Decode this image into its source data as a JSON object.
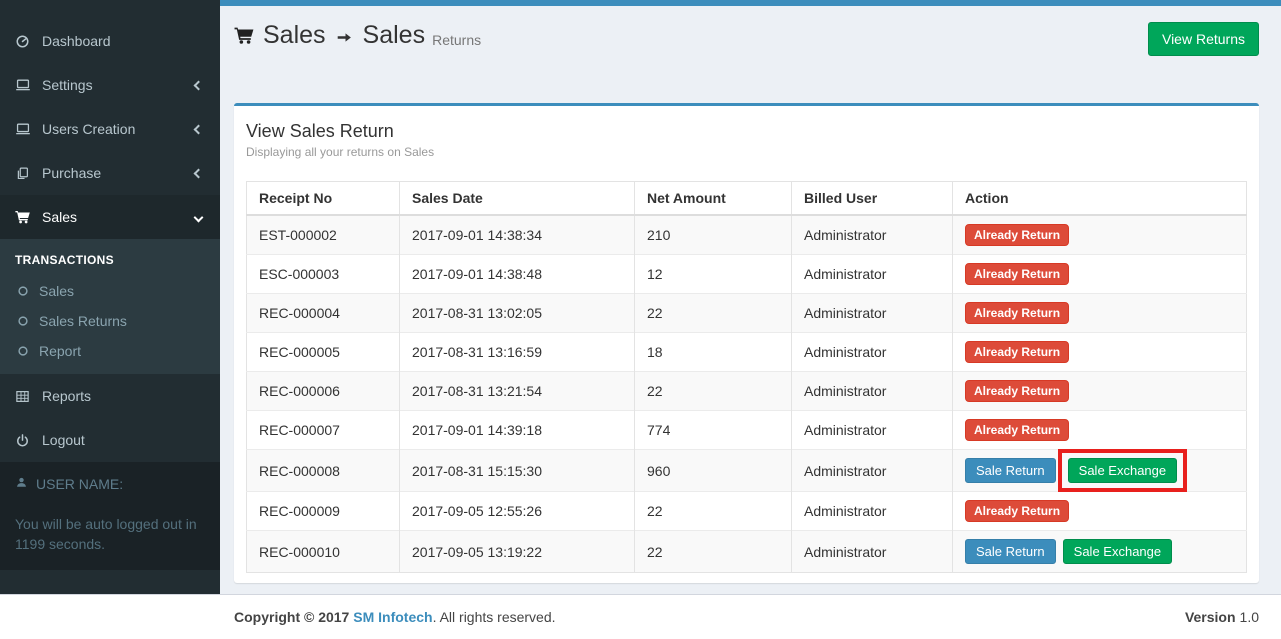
{
  "colors": {
    "accent": "#3c8dbc",
    "success_green": "#00a65a",
    "danger_red": "#dd4b39",
    "primary_blue": "#3c8dbc",
    "highlight_red": "#e8201d",
    "sidebar_bg": "#222d32",
    "sidebar_active_bg": "#1e282c",
    "submenu_bg": "#2c3b41",
    "content_bg": "#ecf0f5"
  },
  "sidebar": {
    "items": [
      {
        "label": "Dashboard",
        "icon": "dashboard-icon"
      },
      {
        "label": "Settings",
        "icon": "laptop-icon"
      },
      {
        "label": "Users Creation",
        "icon": "laptop-icon"
      },
      {
        "label": "Purchase",
        "icon": "copy-icon"
      },
      {
        "label": "Sales",
        "icon": "cart-icon"
      },
      {
        "label": "Reports",
        "icon": "table-icon"
      },
      {
        "label": "Logout",
        "icon": "power-icon"
      }
    ],
    "submenu": {
      "header": "TRANSACTIONS",
      "items": [
        "Sales",
        "Sales Returns",
        "Report"
      ]
    },
    "user": {
      "label": "USER NAME:",
      "auto_logout": "You will be auto logged out in 1199 seconds."
    }
  },
  "header": {
    "breadcrumb_primary": "Sales",
    "breadcrumb_secondary": "Sales",
    "breadcrumb_sub": "Returns",
    "view_returns_button": "View Returns"
  },
  "panel": {
    "title": "View Sales Return",
    "subtitle": "Displaying all your returns on Sales"
  },
  "table": {
    "columns": [
      "Receipt No",
      "Sales Date",
      "Net Amount",
      "Billed User",
      "Action"
    ],
    "action_labels": {
      "already": "Already Return",
      "return": "Sale Return",
      "exchange": "Sale Exchange"
    },
    "rows": [
      {
        "receipt": "EST-000002",
        "date": "2017-09-01 14:38:34",
        "amount": "210",
        "user": "Administrator",
        "actions": [
          "already"
        ]
      },
      {
        "receipt": "ESC-000003",
        "date": "2017-09-01 14:38:48",
        "amount": "12",
        "user": "Administrator",
        "actions": [
          "already"
        ]
      },
      {
        "receipt": "REC-000004",
        "date": "2017-08-31 13:02:05",
        "amount": "22",
        "user": "Administrator",
        "actions": [
          "already"
        ]
      },
      {
        "receipt": "REC-000005",
        "date": "2017-08-31 13:16:59",
        "amount": "18",
        "user": "Administrator",
        "actions": [
          "already"
        ]
      },
      {
        "receipt": "REC-000006",
        "date": "2017-08-31 13:21:54",
        "amount": "22",
        "user": "Administrator",
        "actions": [
          "already"
        ]
      },
      {
        "receipt": "REC-000007",
        "date": "2017-09-01 14:39:18",
        "amount": "774",
        "user": "Administrator",
        "actions": [
          "already"
        ]
      },
      {
        "receipt": "REC-000008",
        "date": "2017-08-31 15:15:30",
        "amount": "960",
        "user": "Administrator",
        "actions": [
          "return",
          "exchange"
        ],
        "highlight": true
      },
      {
        "receipt": "REC-000009",
        "date": "2017-09-05 12:55:26",
        "amount": "22",
        "user": "Administrator",
        "actions": [
          "already"
        ]
      },
      {
        "receipt": "REC-000010",
        "date": "2017-09-05 13:19:22",
        "amount": "22",
        "user": "Administrator",
        "actions": [
          "return",
          "exchange"
        ]
      }
    ]
  },
  "footer": {
    "copyright_prefix": "Copyright © 2017",
    "company": "SM Infotech",
    "copyright_suffix": ". All rights reserved.",
    "version_label": "Version",
    "version_value": "1.0"
  }
}
